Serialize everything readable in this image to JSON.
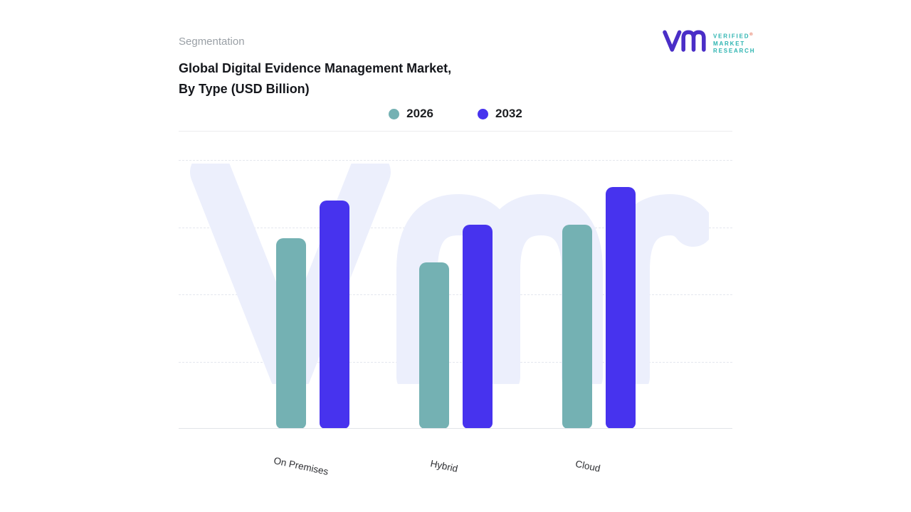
{
  "page": {
    "section_label": "Segmentation",
    "title_line1": "Global Digital Evidence Management Market,",
    "title_line2": "By Type (USD Billion)"
  },
  "logo": {
    "brand_lines": [
      "VERIFIED",
      "MARKET",
      "RESEARCH"
    ],
    "registered_mark": "®",
    "mark_color": "#4a2ec7",
    "text_color": "#2cb4b1"
  },
  "legend": [
    {
      "label": "2026",
      "color": "#74b1b3"
    },
    {
      "label": "2032",
      "color": "#4733ee"
    }
  ],
  "chart_data": {
    "type": "bar",
    "title": "Global Digital Evidence Management Market, By Type (USD Billion)",
    "categories": [
      "On Premises",
      "Hybrid",
      "Cloud"
    ],
    "series": [
      {
        "name": "2026",
        "color": "#74b1b3",
        "values": [
          71,
          62,
          76
        ]
      },
      {
        "name": "2032",
        "color": "#4733ee",
        "values": [
          85,
          76,
          90
        ]
      }
    ],
    "xlabel": "",
    "ylabel": "",
    "ylim": [
      0,
      100
    ],
    "value_axis_labels_visible": false,
    "grid": "horizontal-dashed",
    "legend_position": "top-center",
    "watermark_color": "#eceffc"
  }
}
